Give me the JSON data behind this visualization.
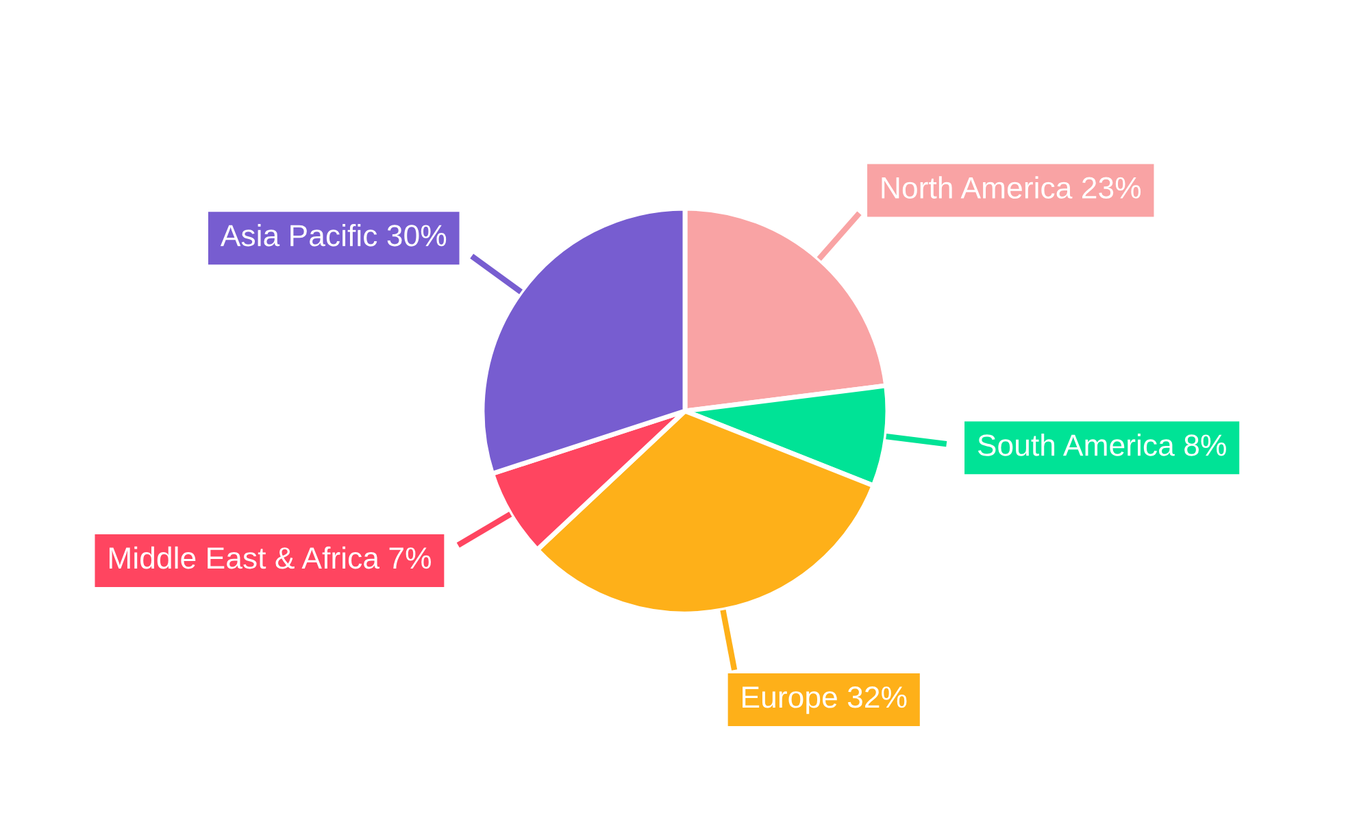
{
  "chart_data": {
    "type": "pie",
    "categories": [
      "North America",
      "South America",
      "Europe",
      "Middle East & Africa",
      "Asia Pacific"
    ],
    "values": [
      23,
      8,
      32,
      7,
      30
    ],
    "value_labels": [
      "23%",
      "8%",
      "32%",
      "7%",
      "30%"
    ],
    "colors": [
      "#f9a3a4",
      "#00e396",
      "#feb019",
      "#ff4560",
      "#775dd0"
    ],
    "legend": false
  }
}
